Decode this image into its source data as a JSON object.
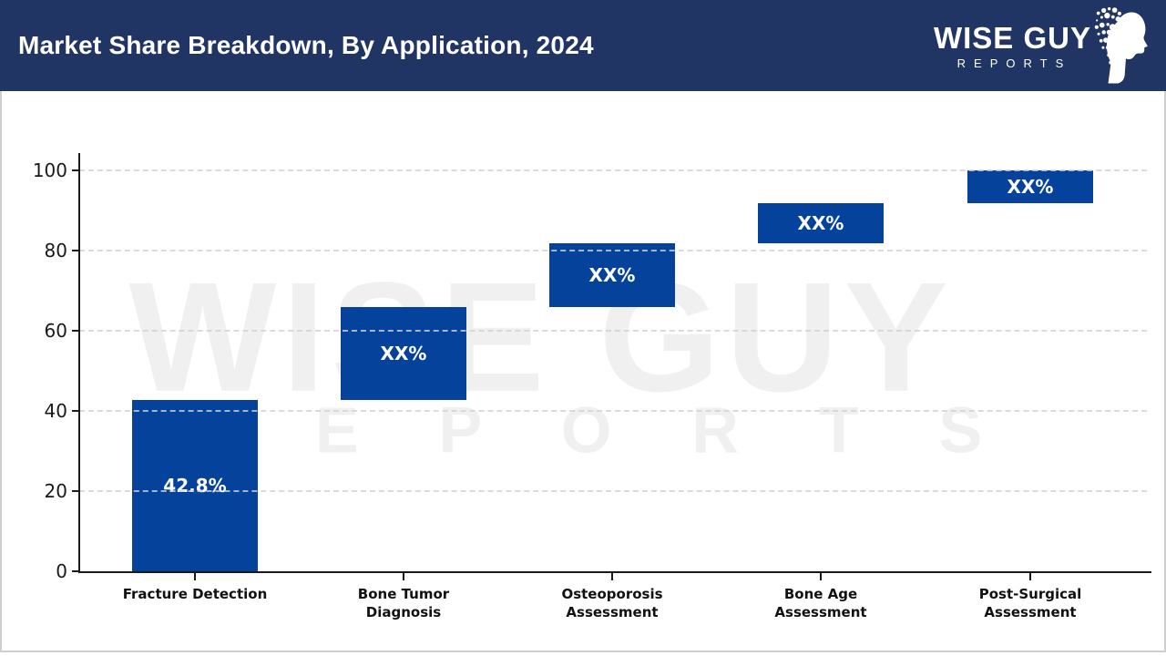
{
  "header": {
    "title": "Market Share Breakdown, By Application, 2024",
    "logo": {
      "primary": "WISE GUY",
      "secondary": "REPORTS"
    }
  },
  "watermark": {
    "primary": "WISE GUY",
    "secondary": "R E P O R T S"
  },
  "chart_data": {
    "type": "bar",
    "variant": "waterfall",
    "title": "Market Share Breakdown, By Application, 2024",
    "categories": [
      "Fracture Detection",
      "Bone Tumor Diagnosis",
      "Osteoporosis Assessment",
      "Bone Age Assessment",
      "Post-Surgical Assessment"
    ],
    "bars": [
      {
        "category": "Fracture Detection",
        "label_lines": [
          "Fracture Detection"
        ],
        "start": 0,
        "end": 42.8,
        "label": "42.8%"
      },
      {
        "category": "Bone Tumor Diagnosis",
        "label_lines": [
          "Bone Tumor",
          "Diagnosis"
        ],
        "start": 42.8,
        "end": 65.8,
        "label": "XX%"
      },
      {
        "category": "Osteoporosis Assessment",
        "label_lines": [
          "Osteoporosis",
          "Assessment"
        ],
        "start": 65.8,
        "end": 81.8,
        "label": "XX%"
      },
      {
        "category": "Bone Age Assessment",
        "label_lines": [
          "Bone Age",
          "Assessment"
        ],
        "start": 81.8,
        "end": 91.8,
        "label": "XX%"
      },
      {
        "category": "Post-Surgical Assessment",
        "label_lines": [
          "Post-Surgical",
          "Assessment"
        ],
        "start": 91.8,
        "end": 100,
        "label": "XX%"
      }
    ],
    "xlabel": "",
    "ylabel": "",
    "ylim": [
      0,
      100
    ],
    "yticks": [
      0,
      20,
      40,
      60,
      80,
      100
    ],
    "grid": "horizontal-dashed",
    "legend": "none",
    "bar_color": "#05429C",
    "value_label_color": "#FFFFFF"
  },
  "colors": {
    "header_background": "#213564",
    "header_text": "#FFFFFF",
    "bar_blue": "#05429C",
    "watermark_gray": "#F0F0F0",
    "gridline_gray": "#D9D9D9",
    "axis_black": "#1A1A1A",
    "border_gray": "#CFCFCF",
    "page_background": "#FFFFFF"
  }
}
